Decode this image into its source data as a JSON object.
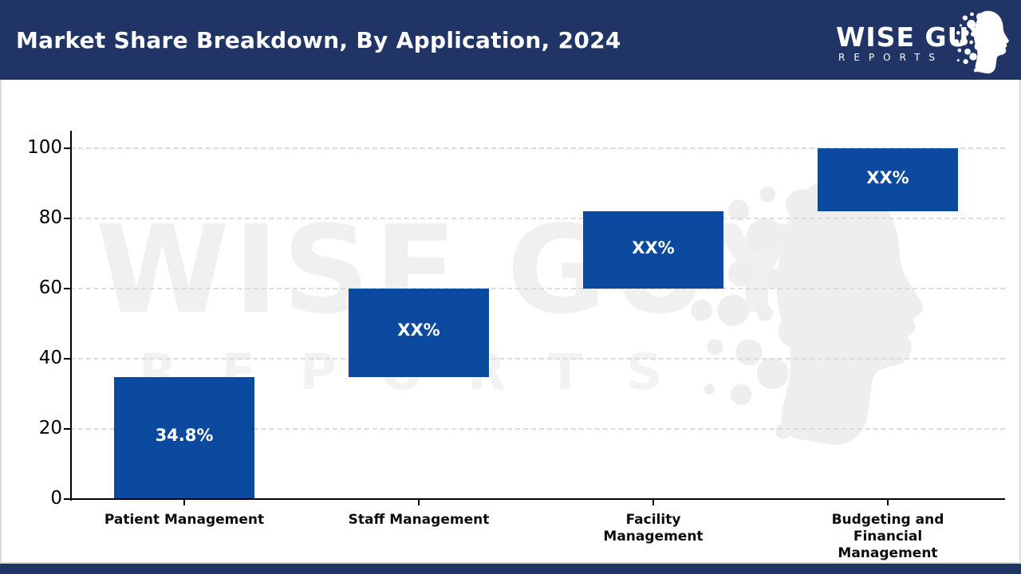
{
  "header": {
    "title": "Market Share Breakdown, By Application, 2024",
    "bg_color": "#203566",
    "logo": {
      "line1": "WISE GUY",
      "line2": "REPORTS"
    }
  },
  "watermark": {
    "line1": "WISE GUY",
    "line2": "REPORTS"
  },
  "chart_data": {
    "type": "bar",
    "subtype": "floating-waterfall",
    "title": "Market Share Breakdown, By Application, 2024",
    "categories": [
      "Patient Management",
      "Staff Management",
      "Facility Management",
      "Budgeting and Financial Management"
    ],
    "category_label_lines": [
      [
        "Patient Management"
      ],
      [
        "Staff Management"
      ],
      [
        "Facility",
        "Management"
      ],
      [
        "Budgeting and",
        "Financial",
        "Management"
      ]
    ],
    "series": [
      {
        "name": "Market share (%)",
        "segments": [
          {
            "category": "Patient Management",
            "start": 0,
            "end": 34.8,
            "label": "34.8%"
          },
          {
            "category": "Staff Management",
            "start": 34.8,
            "end": 60,
            "label": "XX%"
          },
          {
            "category": "Facility Management",
            "start": 60,
            "end": 82,
            "label": "XX%"
          },
          {
            "category": "Budgeting and Financial Management",
            "start": 82,
            "end": 100,
            "label": "XX%"
          }
        ]
      }
    ],
    "xlabel": "",
    "ylabel": "",
    "ylim": [
      0,
      100
    ],
    "yticks": [
      0,
      20,
      40,
      60,
      80,
      100
    ],
    "grid": {
      "axis": "y",
      "style": "dashed",
      "color": "#dcdcdc"
    },
    "legend": "none",
    "bar_color": "#0b4a9e",
    "bar_label_color": "#ffffff",
    "axis_color": "#000000"
  },
  "footer": {
    "bg_color": "#203566"
  }
}
